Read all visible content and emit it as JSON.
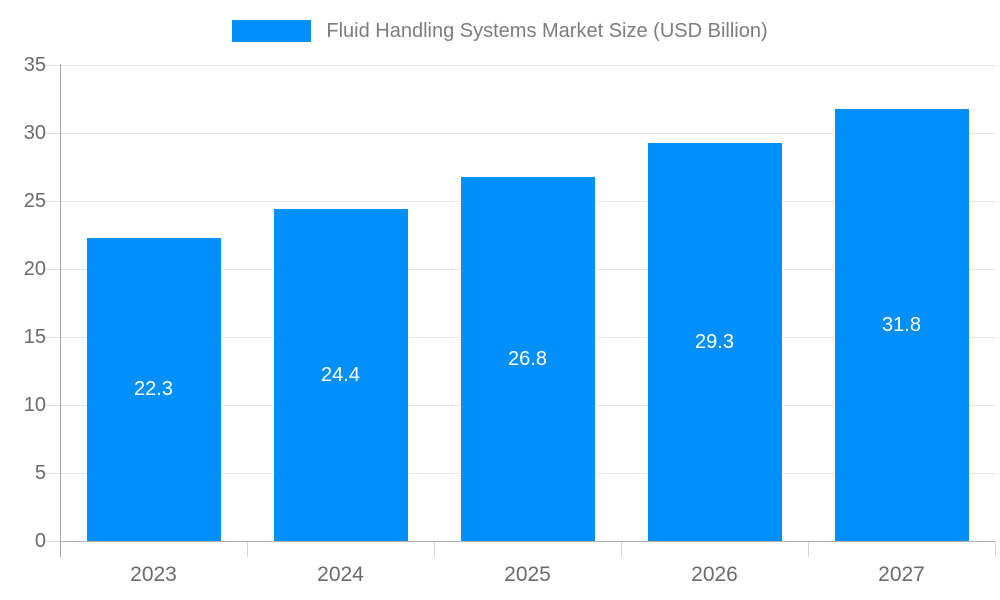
{
  "chart_data": {
    "type": "bar",
    "title": "Fluid Handling Systems Market Size (USD Billion)",
    "categories": [
      "2023",
      "2024",
      "2025",
      "2026",
      "2027"
    ],
    "series": [
      {
        "name": "Fluid Handling Systems Market Size (USD Billion)",
        "values": [
          22.3,
          24.4,
          26.8,
          29.3,
          31.8
        ]
      }
    ],
    "data_labels": [
      "22.3",
      "24.4",
      "26.8",
      "29.3",
      "31.8"
    ],
    "xlabel": "",
    "ylabel": "",
    "ylim": [
      0,
      35
    ],
    "yticks": [
      0,
      5,
      10,
      15,
      20,
      25,
      30,
      35
    ],
    "grid": "horizontal",
    "legend_position": "top"
  },
  "colors": {
    "bar": "#008FFB",
    "bar_label_text": "#ffffff",
    "grid": "#e7e7e7",
    "y_axis_line": "#a6a6a6",
    "x_axis_line": "#b2b2b2",
    "y_tick": "#e0e0e0",
    "x_tick": "#d6d6d6",
    "axis_label_text": "#6b6b6b",
    "legend_text": "#7d7d7d",
    "background": "#ffffff"
  }
}
